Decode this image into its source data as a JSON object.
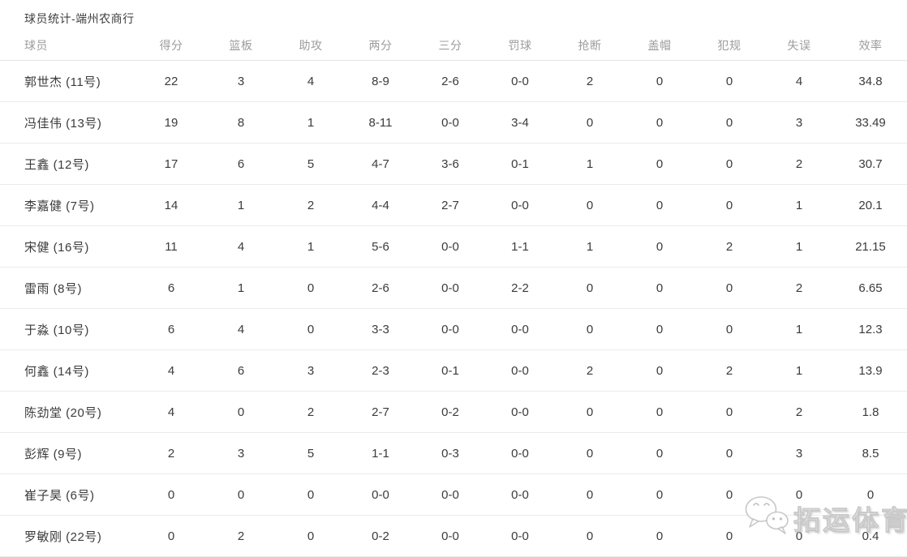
{
  "chart_data": {
    "type": "table",
    "title": "球员统计-端州农商行",
    "columns": [
      "球员",
      "得分",
      "篮板",
      "助攻",
      "两分",
      "三分",
      "罚球",
      "抢断",
      "盖帽",
      "犯规",
      "失误",
      "效率"
    ],
    "rows": [
      [
        "郭世杰 (11号)",
        "22",
        "3",
        "4",
        "8-9",
        "2-6",
        "0-0",
        "2",
        "0",
        "0",
        "4",
        "34.8"
      ],
      [
        "冯佳伟 (13号)",
        "19",
        "8",
        "1",
        "8-11",
        "0-0",
        "3-4",
        "0",
        "0",
        "0",
        "3",
        "33.49"
      ],
      [
        "王鑫 (12号)",
        "17",
        "6",
        "5",
        "4-7",
        "3-6",
        "0-1",
        "1",
        "0",
        "0",
        "2",
        "30.7"
      ],
      [
        "李嘉健 (7号)",
        "14",
        "1",
        "2",
        "4-4",
        "2-7",
        "0-0",
        "0",
        "0",
        "0",
        "1",
        "20.1"
      ],
      [
        "宋健 (16号)",
        "11",
        "4",
        "1",
        "5-6",
        "0-0",
        "1-1",
        "1",
        "0",
        "2",
        "1",
        "21.15"
      ],
      [
        "雷雨 (8号)",
        "6",
        "1",
        "0",
        "2-6",
        "0-0",
        "2-2",
        "0",
        "0",
        "0",
        "2",
        "6.65"
      ],
      [
        "于淼 (10号)",
        "6",
        "4",
        "0",
        "3-3",
        "0-0",
        "0-0",
        "0",
        "0",
        "0",
        "1",
        "12.3"
      ],
      [
        "何鑫 (14号)",
        "4",
        "6",
        "3",
        "2-3",
        "0-1",
        "0-0",
        "2",
        "0",
        "2",
        "1",
        "13.9"
      ],
      [
        "陈劲堂 (20号)",
        "4",
        "0",
        "2",
        "2-7",
        "0-2",
        "0-0",
        "0",
        "0",
        "0",
        "2",
        "1.8"
      ],
      [
        "彭辉 (9号)",
        "2",
        "3",
        "5",
        "1-1",
        "0-3",
        "0-0",
        "0",
        "0",
        "0",
        "3",
        "8.5"
      ],
      [
        "崔子昊 (6号)",
        "0",
        "0",
        "0",
        "0-0",
        "0-0",
        "0-0",
        "0",
        "0",
        "0",
        "0",
        "0"
      ],
      [
        "罗敏刚 (22号)",
        "0",
        "2",
        "0",
        "0-2",
        "0-0",
        "0-0",
        "0",
        "0",
        "0",
        "0",
        "0.4"
      ]
    ]
  },
  "watermark": {
    "text": "拓运体育",
    "icon": "wechat-logo"
  },
  "colors": {
    "background": "#ffffff",
    "title_text": "#3f3f3f",
    "header_text": "#9c9c9c",
    "cell_text": "#3b3b3b",
    "divider": "#ebebeb",
    "watermark_stroke": "#c4c4c4"
  }
}
